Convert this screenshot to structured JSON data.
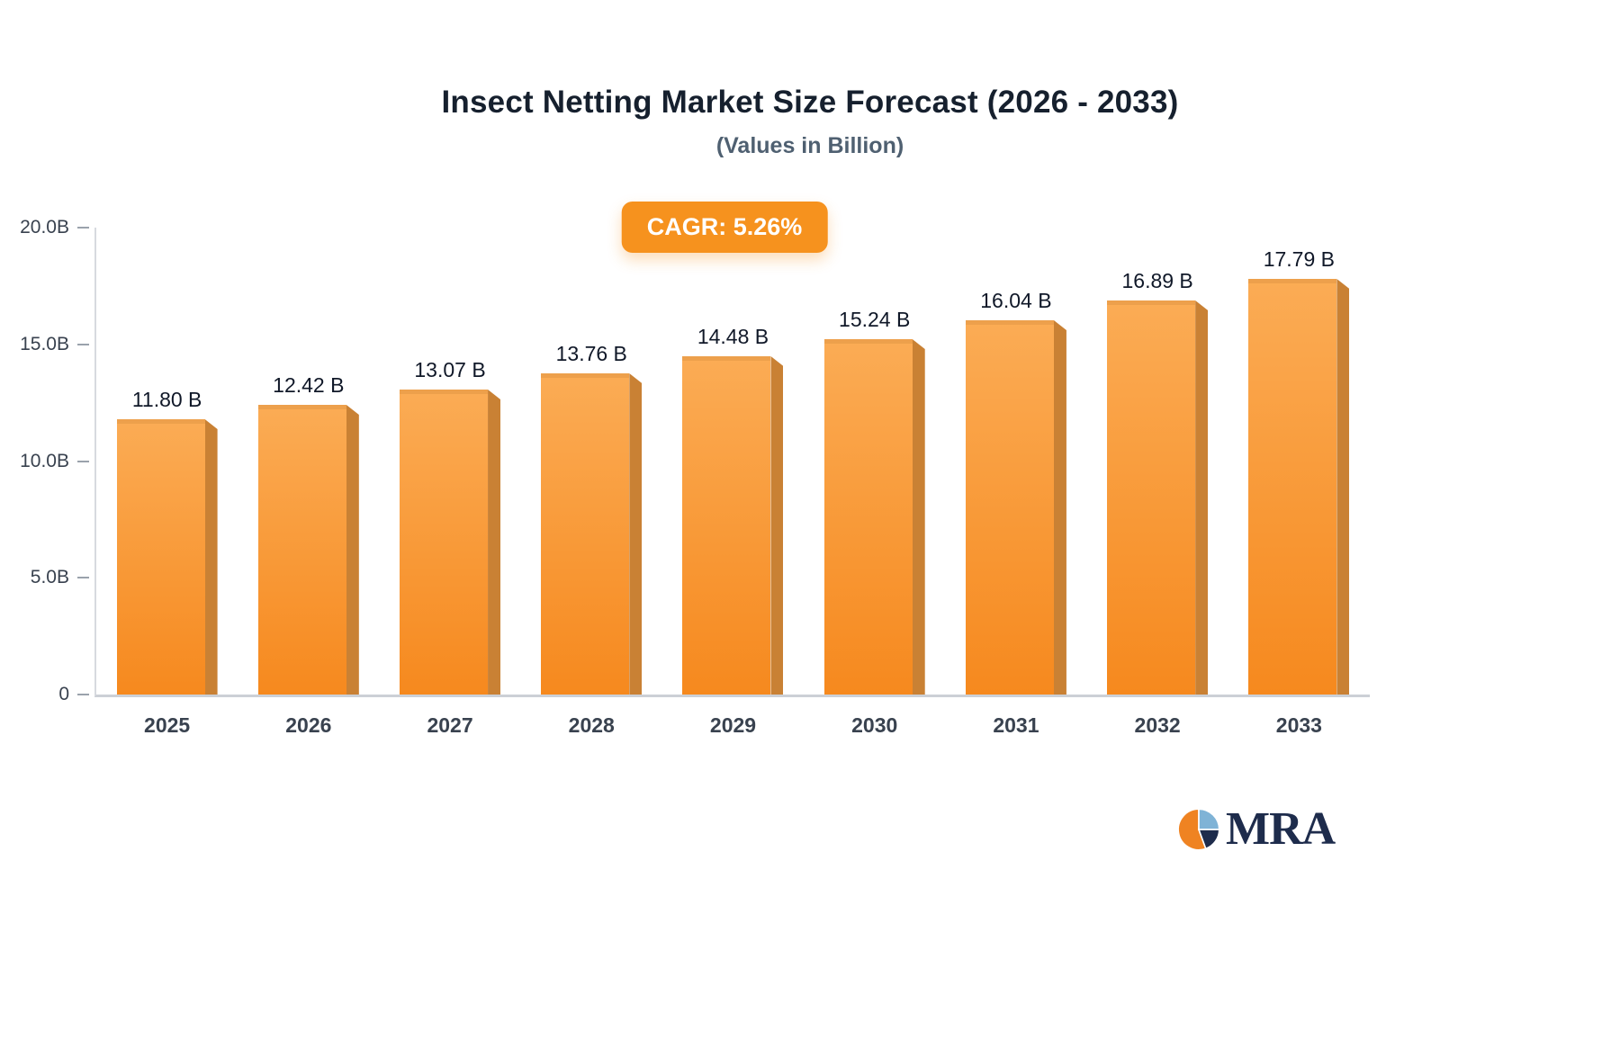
{
  "header": {
    "title": "Insect Netting Market Size Forecast (2026 - 2033)",
    "subtitle": "(Values in Billion)"
  },
  "badge": {
    "label": "CAGR: 5.26%"
  },
  "chart_data": {
    "type": "bar",
    "title": "Insect Netting Market Size Forecast (2026 - 2033)",
    "subtitle": "(Values in Billion)",
    "cagr": "5.26%",
    "categories": [
      "2025",
      "2026",
      "2027",
      "2028",
      "2029",
      "2030",
      "2031",
      "2032",
      "2033"
    ],
    "values": [
      11.8,
      12.42,
      13.07,
      13.76,
      14.48,
      15.24,
      16.04,
      16.89,
      17.79
    ],
    "value_labels": [
      "11.80 B",
      "12.42 B",
      "13.07 B",
      "13.76 B",
      "14.48 B",
      "15.24 B",
      "16.04 B",
      "16.89 B",
      "17.79 B"
    ],
    "xlabel": "",
    "ylabel": "",
    "ylim": [
      0,
      20
    ],
    "yticks": [
      {
        "value": 0,
        "label": "0"
      },
      {
        "value": 5,
        "label": "5.0B"
      },
      {
        "value": 10,
        "label": "10.0B"
      },
      {
        "value": 15,
        "label": "15.0B"
      },
      {
        "value": 20,
        "label": "20.0B"
      }
    ],
    "grid": false,
    "legend": false
  },
  "colors": {
    "accent": "#f6921e",
    "bar_top": "#fbac55",
    "bar_bottom": "#f6891e",
    "bar_side": "#c98134",
    "title": "#16202e",
    "subtitle": "#4f6071"
  },
  "logo": {
    "text": "MRA",
    "navy": "#1e2c4c",
    "blue": "#7fb3d6",
    "orange": "#ef8322"
  }
}
